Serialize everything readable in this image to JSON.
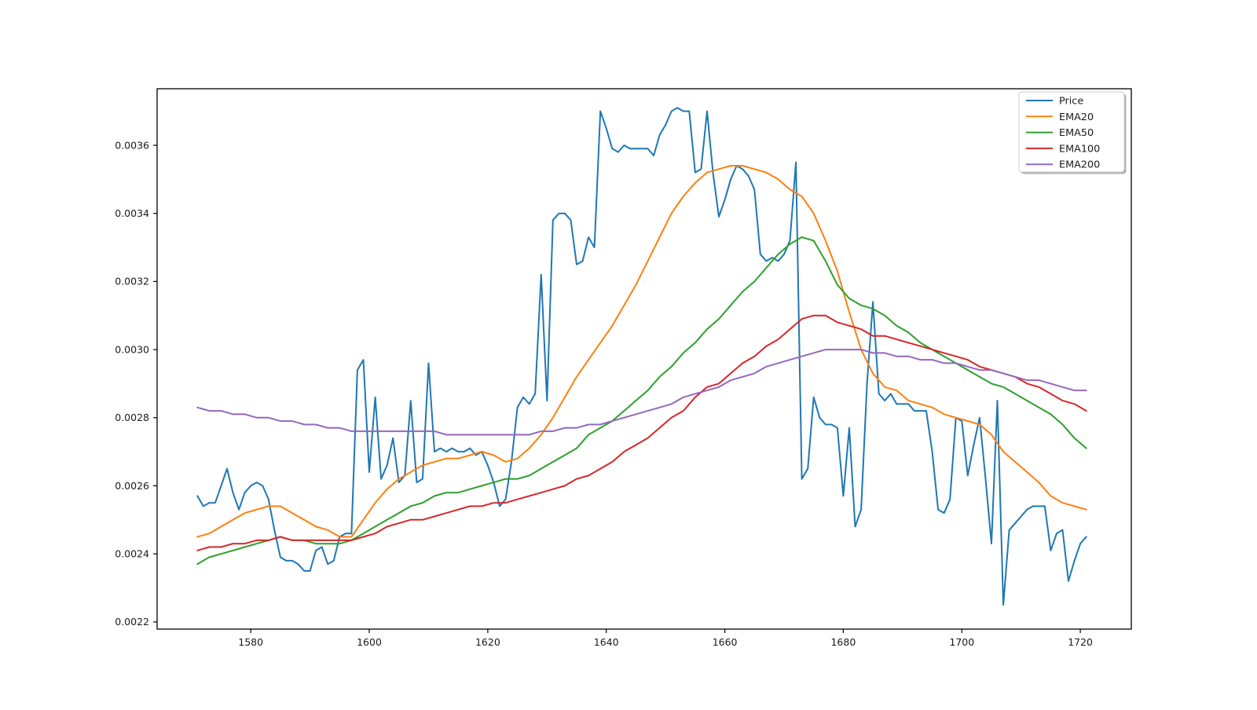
{
  "figure": {
    "background": "#ffffff",
    "frame_color": "#000000"
  },
  "chart_data": {
    "type": "line",
    "title": "",
    "xlabel": "",
    "ylabel": "",
    "grid": false,
    "xlim": [
      1564.2,
      1728.6
    ],
    "ylim": [
      0.002179,
      0.003766
    ],
    "x_ticks": [
      1580,
      1600,
      1620,
      1640,
      1660,
      1680,
      1700,
      1720
    ],
    "x_tick_labels": [
      "1580",
      "1600",
      "1620",
      "1640",
      "1660",
      "1680",
      "1700",
      "1720"
    ],
    "y_ticks": [
      0.0022,
      0.0024,
      0.0026,
      0.0028,
      0.003,
      0.0032,
      0.0034,
      0.0036
    ],
    "y_tick_labels": [
      "0.0022",
      "0.0024",
      "0.0026",
      "0.0028",
      "0.0030",
      "0.0032",
      "0.0034",
      "0.0036"
    ],
    "legend": {
      "position": "upper-right",
      "entries": [
        {
          "label": "Price",
          "color": "#1f77b4"
        },
        {
          "label": "EMA20",
          "color": "#ff7f0e"
        },
        {
          "label": "EMA50",
          "color": "#2ca02c"
        },
        {
          "label": "EMA100",
          "color": "#d62728"
        },
        {
          "label": "EMA200",
          "color": "#9467bd"
        }
      ]
    },
    "series": [
      {
        "name": "Price",
        "color": "#1f77b4",
        "x_start": 1571,
        "x_step": 1,
        "values": [
          0.00257,
          0.00254,
          0.00255,
          0.00255,
          0.0026,
          0.00265,
          0.00258,
          0.00253,
          0.00258,
          0.0026,
          0.00261,
          0.0026,
          0.00256,
          0.00247,
          0.00239,
          0.00238,
          0.00238,
          0.00237,
          0.00235,
          0.00235,
          0.00241,
          0.00242,
          0.00237,
          0.00238,
          0.00245,
          0.00246,
          0.00246,
          0.00294,
          0.00297,
          0.00264,
          0.00286,
          0.00262,
          0.00266,
          0.00274,
          0.00261,
          0.00263,
          0.00285,
          0.00261,
          0.00262,
          0.00296,
          0.0027,
          0.00271,
          0.0027,
          0.00271,
          0.0027,
          0.0027,
          0.00271,
          0.00269,
          0.0027,
          0.00266,
          0.00261,
          0.00254,
          0.00256,
          0.00267,
          0.00283,
          0.00286,
          0.00284,
          0.00287,
          0.00322,
          0.00285,
          0.00338,
          0.0034,
          0.0034,
          0.00338,
          0.00325,
          0.00326,
          0.00333,
          0.0033,
          0.0037,
          0.00365,
          0.00359,
          0.00358,
          0.0036,
          0.00359,
          0.00359,
          0.00359,
          0.00359,
          0.00357,
          0.00363,
          0.00366,
          0.0037,
          0.00371,
          0.0037,
          0.0037,
          0.00352,
          0.00353,
          0.0037,
          0.00352,
          0.00339,
          0.00344,
          0.0035,
          0.00354,
          0.00353,
          0.00351,
          0.00347,
          0.00328,
          0.00326,
          0.00327,
          0.00326,
          0.00328,
          0.00332,
          0.00355,
          0.00262,
          0.00265,
          0.00286,
          0.0028,
          0.00278,
          0.00278,
          0.00277,
          0.00257,
          0.00277,
          0.00248,
          0.00253,
          0.0029,
          0.00314,
          0.00287,
          0.00285,
          0.00287,
          0.00284,
          0.00284,
          0.00284,
          0.00282,
          0.00282,
          0.00282,
          0.0027,
          0.00253,
          0.00252,
          0.00256,
          0.0028,
          0.00279,
          0.00263,
          0.00272,
          0.0028,
          0.00262,
          0.00243,
          0.00285,
          0.00225,
          0.00247,
          0.00249,
          0.00251,
          0.00253,
          0.00254,
          0.00254,
          0.00254,
          0.00241,
          0.00246,
          0.00247,
          0.00232,
          0.00238,
          0.00243,
          0.00245
        ]
      },
      {
        "name": "EMA20",
        "color": "#ff7f0e",
        "x_start": 1571,
        "x_step": 2,
        "values": [
          0.00245,
          0.00246,
          0.00248,
          0.0025,
          0.00252,
          0.00253,
          0.00254,
          0.00254,
          0.00252,
          0.0025,
          0.00248,
          0.00247,
          0.00245,
          0.00245,
          0.0025,
          0.00255,
          0.00259,
          0.00262,
          0.00264,
          0.00266,
          0.00267,
          0.00268,
          0.00268,
          0.00269,
          0.0027,
          0.00269,
          0.00267,
          0.00268,
          0.00271,
          0.00275,
          0.0028,
          0.00286,
          0.00292,
          0.00297,
          0.00302,
          0.00307,
          0.00313,
          0.00319,
          0.00326,
          0.00333,
          0.0034,
          0.00345,
          0.00349,
          0.00352,
          0.00353,
          0.00354,
          0.00354,
          0.00353,
          0.00352,
          0.0035,
          0.00347,
          0.00345,
          0.0034,
          0.00332,
          0.00323,
          0.00311,
          0.003,
          0.00293,
          0.00289,
          0.00288,
          0.00285,
          0.00284,
          0.00283,
          0.00281,
          0.0028,
          0.00279,
          0.00278,
          0.00275,
          0.0027,
          0.00267,
          0.00264,
          0.00261,
          0.00257,
          0.00255,
          0.00254,
          0.00253
        ]
      },
      {
        "name": "EMA50",
        "color": "#2ca02c",
        "x_start": 1571,
        "x_step": 2,
        "values": [
          0.00237,
          0.00239,
          0.0024,
          0.00241,
          0.00242,
          0.00243,
          0.00244,
          0.00245,
          0.00244,
          0.00244,
          0.00243,
          0.00243,
          0.00243,
          0.00244,
          0.00246,
          0.00248,
          0.0025,
          0.00252,
          0.00254,
          0.00255,
          0.00257,
          0.00258,
          0.00258,
          0.00259,
          0.0026,
          0.00261,
          0.00262,
          0.00262,
          0.00263,
          0.00265,
          0.00267,
          0.00269,
          0.00271,
          0.00275,
          0.00277,
          0.00279,
          0.00282,
          0.00285,
          0.00288,
          0.00292,
          0.00295,
          0.00299,
          0.00302,
          0.00306,
          0.00309,
          0.00313,
          0.00317,
          0.0032,
          0.00324,
          0.00328,
          0.00331,
          0.00333,
          0.00332,
          0.00326,
          0.00319,
          0.00315,
          0.00313,
          0.00312,
          0.0031,
          0.00307,
          0.00305,
          0.00302,
          0.003,
          0.00298,
          0.00296,
          0.00294,
          0.00292,
          0.0029,
          0.00289,
          0.00287,
          0.00285,
          0.00283,
          0.00281,
          0.00278,
          0.00274,
          0.00271
        ]
      },
      {
        "name": "EMA100",
        "color": "#d62728",
        "x_start": 1571,
        "x_step": 2,
        "values": [
          0.00241,
          0.00242,
          0.00242,
          0.00243,
          0.00243,
          0.00244,
          0.00244,
          0.00245,
          0.00244,
          0.00244,
          0.00244,
          0.00244,
          0.00244,
          0.00244,
          0.00245,
          0.00246,
          0.00248,
          0.00249,
          0.0025,
          0.0025,
          0.00251,
          0.00252,
          0.00253,
          0.00254,
          0.00254,
          0.00255,
          0.00255,
          0.00256,
          0.00257,
          0.00258,
          0.00259,
          0.0026,
          0.00262,
          0.00263,
          0.00265,
          0.00267,
          0.0027,
          0.00272,
          0.00274,
          0.00277,
          0.0028,
          0.00282,
          0.00286,
          0.00289,
          0.0029,
          0.00293,
          0.00296,
          0.00298,
          0.00301,
          0.00303,
          0.00306,
          0.00309,
          0.0031,
          0.0031,
          0.00308,
          0.00307,
          0.00306,
          0.00304,
          0.00304,
          0.00303,
          0.00302,
          0.00301,
          0.003,
          0.00299,
          0.00298,
          0.00297,
          0.00295,
          0.00294,
          0.00293,
          0.00292,
          0.0029,
          0.00289,
          0.00287,
          0.00285,
          0.00284,
          0.00282
        ]
      },
      {
        "name": "EMA200",
        "color": "#9467bd",
        "x_start": 1571,
        "x_step": 2,
        "values": [
          0.00283,
          0.00282,
          0.00282,
          0.00281,
          0.00281,
          0.0028,
          0.0028,
          0.00279,
          0.00279,
          0.00278,
          0.00278,
          0.00277,
          0.00277,
          0.00276,
          0.00276,
          0.00276,
          0.00276,
          0.00276,
          0.00276,
          0.00276,
          0.00276,
          0.00275,
          0.00275,
          0.00275,
          0.00275,
          0.00275,
          0.00275,
          0.00275,
          0.00275,
          0.00276,
          0.00276,
          0.00277,
          0.00277,
          0.00278,
          0.00278,
          0.00279,
          0.0028,
          0.00281,
          0.00282,
          0.00283,
          0.00284,
          0.00286,
          0.00287,
          0.00288,
          0.00289,
          0.00291,
          0.00292,
          0.00293,
          0.00295,
          0.00296,
          0.00297,
          0.00298,
          0.00299,
          0.003,
          0.003,
          0.003,
          0.003,
          0.00299,
          0.00299,
          0.00298,
          0.00298,
          0.00297,
          0.00297,
          0.00296,
          0.00296,
          0.00295,
          0.00294,
          0.00294,
          0.00293,
          0.00292,
          0.00291,
          0.00291,
          0.0029,
          0.00289,
          0.00288,
          0.00288
        ]
      }
    ]
  }
}
